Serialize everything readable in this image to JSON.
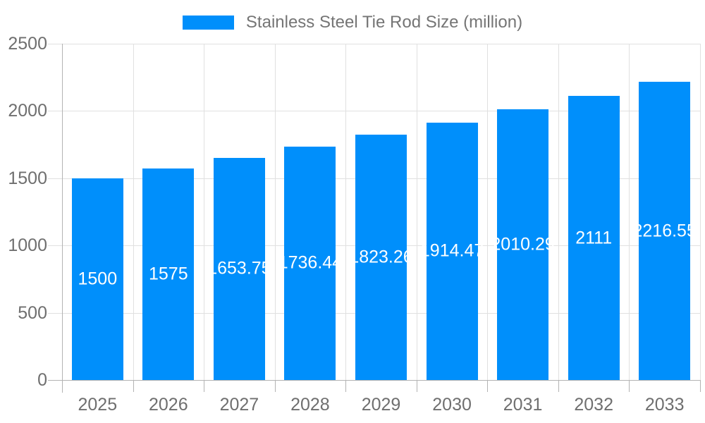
{
  "chart_data": {
    "type": "bar",
    "title": "",
    "legend": "Stainless Steel Tie Rod Size (million)",
    "legend_position": "top",
    "categories": [
      "2025",
      "2026",
      "2027",
      "2028",
      "2029",
      "2030",
      "2031",
      "2032",
      "2033"
    ],
    "values": [
      1500,
      1575,
      1653.75,
      1736.44,
      1823.26,
      1914.47,
      2010.29,
      2111,
      2216.55
    ],
    "value_labels": [
      "1500",
      "1575",
      "1653.75",
      "1736.44",
      "1823.26",
      "1914.47",
      "2010.29",
      "2111",
      "2216.55"
    ],
    "xlabel": "",
    "ylabel": "",
    "ylim": [
      0,
      2500
    ],
    "yticks": [
      0,
      500,
      1000,
      1500,
      2000,
      2500
    ],
    "grid": true,
    "bar_color": "#008FFB",
    "value_label_color": "#ffffff",
    "axis_text_color": "#6f6f6f",
    "legend_text_color": "#757575",
    "grid_color": "#e0e0e0",
    "axis_line_color": "#b3b3b3"
  }
}
